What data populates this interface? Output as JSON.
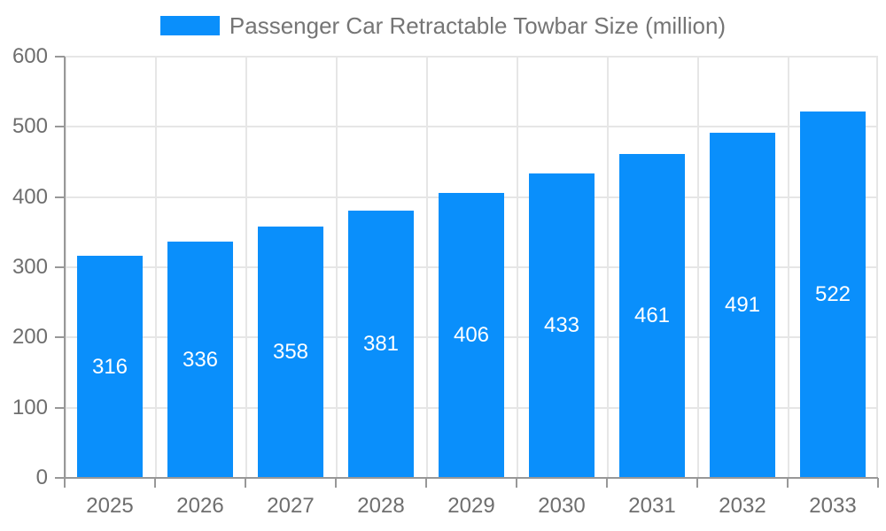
{
  "chart_data": {
    "type": "bar",
    "title": "Passenger Car Retractable Towbar Size (million)",
    "legend": "Passenger Car Retractable Towbar Size (million)",
    "legend_position": "top",
    "categories": [
      "2025",
      "2026",
      "2027",
      "2028",
      "2029",
      "2030",
      "2031",
      "2032",
      "2033"
    ],
    "values": [
      316,
      336,
      358,
      381,
      406,
      433,
      461,
      491,
      522
    ],
    "series_name": "Passenger Car Retractable Towbar Size (million)",
    "xlabel": "",
    "ylabel": "",
    "ylim": [
      0,
      600
    ],
    "yticks": [
      0,
      100,
      200,
      300,
      400,
      500,
      600
    ],
    "grid": true,
    "bar_labels_visible": true
  },
  "colors": {
    "bar": "#0A8FFB",
    "grid": "#E6E6E6",
    "axis": "#989898",
    "tick_text": "#6E6E6E",
    "legend_text": "#757575",
    "value_label": "#FFFFFF",
    "background": "#FFFFFF"
  }
}
